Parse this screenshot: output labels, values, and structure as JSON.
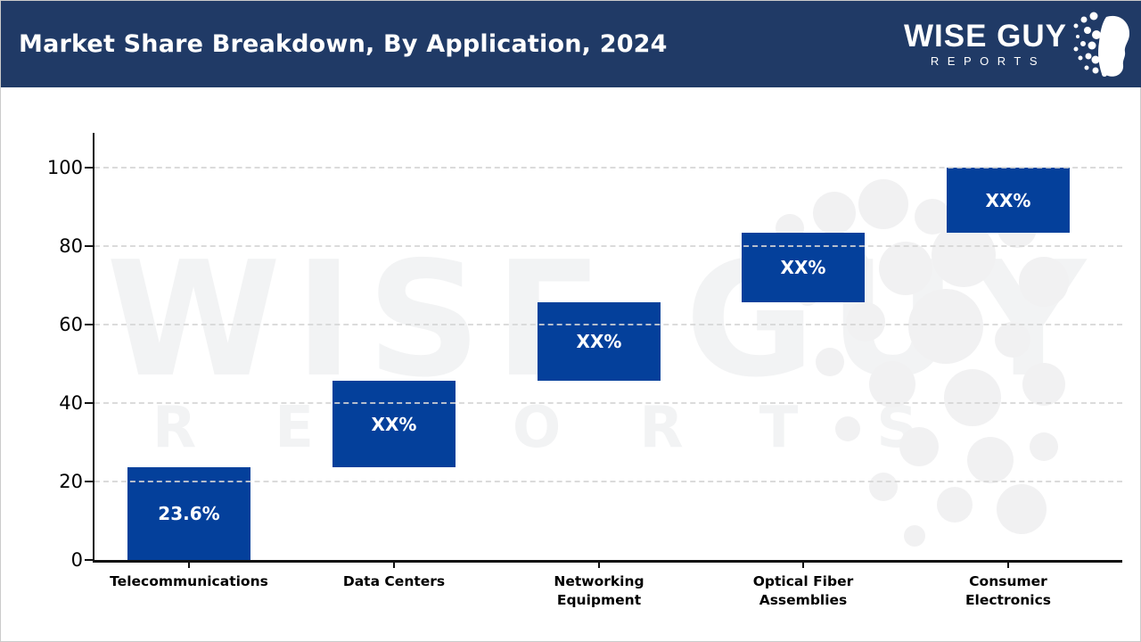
{
  "header": {
    "title": "Market Share Breakdown, By Application, 2024",
    "logo": {
      "name": "WISE GUY",
      "subtitle": "REPORTS"
    }
  },
  "watermark": {
    "name": "WISE GUY",
    "subtitle": "REPORTS"
  },
  "icons": {
    "logo_face": "dotted-head-profile",
    "watermark_face": "dotted-head-profile"
  },
  "colors": {
    "header_bg": "#203a66",
    "bar": "#04409b",
    "watermark": "#f2f3f4",
    "gridline": "#d5d5d5",
    "axis": "#111111",
    "bar_label_text": "#ffffff",
    "title_text": "#ffffff"
  },
  "chart_data": {
    "type": "bar",
    "subtype": "waterfall",
    "title": "Market Share Breakdown, By Application, 2024",
    "xlabel": "",
    "ylabel": "",
    "categories": [
      "Telecommunications",
      "Data Centers",
      "Networking Equipment",
      "Optical Fiber Assemblies",
      "Consumer Electronics"
    ],
    "category_lines": [
      [
        "Telecommunications"
      ],
      [
        "Data Centers"
      ],
      [
        "Networking",
        "Equipment"
      ],
      [
        "Optical Fiber",
        "Assemblies"
      ],
      [
        "Consumer",
        "Electronics"
      ]
    ],
    "series": [
      {
        "name": "Market Share %",
        "segment_start": [
          0,
          23.6,
          45.6,
          65.6,
          83.4
        ],
        "segment_end": [
          23.6,
          45.6,
          65.6,
          83.4,
          100
        ]
      }
    ],
    "bar_labels": [
      "23.6%",
      "XX%",
      "XX%",
      "XX%",
      "XX%"
    ],
    "yticks": [
      0,
      20,
      40,
      60,
      80,
      100
    ],
    "ylim": [
      0,
      105
    ],
    "grid": "horizontal-dashed",
    "legend": "none"
  }
}
